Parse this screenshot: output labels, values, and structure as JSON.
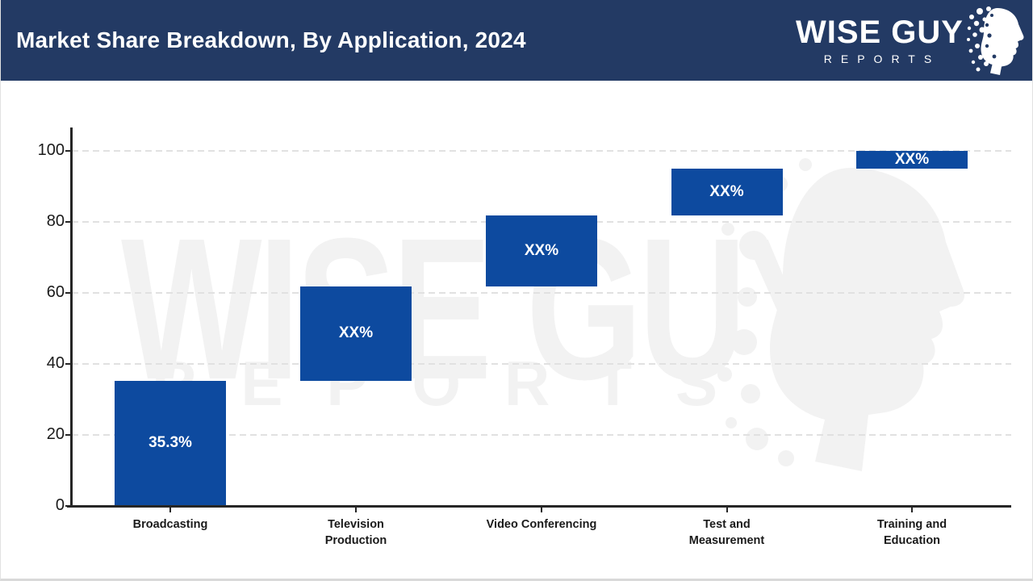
{
  "header": {
    "title": "Market Share Breakdown, By Application, 2024",
    "logo": {
      "line1": "WISE GUY",
      "line2": "REPORTS"
    }
  },
  "watermark": {
    "line1": "WISE GUY",
    "line2": "REPORTS"
  },
  "chart_data": {
    "type": "bar",
    "subtype": "waterfall",
    "title": "Market Share Breakdown, By Application, 2024",
    "categories": [
      "Broadcasting",
      "Television Production",
      "Video Conferencing",
      "Test and Measurement",
      "Training and Education"
    ],
    "category_label_lines": [
      [
        "Broadcasting"
      ],
      [
        "Television",
        "Production"
      ],
      [
        "Video Conferencing"
      ],
      [
        "Test and",
        "Measurement"
      ],
      [
        "Training and",
        "Education"
      ]
    ],
    "segments": [
      {
        "category": "Broadcasting",
        "label": "35.3%",
        "start": 0,
        "end": 35.3,
        "value": 35.3
      },
      {
        "category": "Television Production",
        "label": "XX%",
        "start": 35.3,
        "end": 61.8,
        "value": 26.5
      },
      {
        "category": "Video Conferencing",
        "label": "XX%",
        "start": 61.8,
        "end": 81.8,
        "value": 20.0
      },
      {
        "category": "Test and Measurement",
        "label": "XX%",
        "start": 81.8,
        "end": 94.9,
        "value": 13.1
      },
      {
        "category": "Training and Education",
        "label": "XX%",
        "start": 94.9,
        "end": 100,
        "value": 5.1
      }
    ],
    "y_ticks": [
      0,
      20,
      40,
      60,
      80,
      100
    ],
    "ylim": [
      0,
      106
    ],
    "xlabel": "",
    "ylabel": "",
    "grid": "horizontal-dashed",
    "legend": "none",
    "colors": {
      "bar": "#0d4a9f",
      "bar_label": "#ffffff",
      "axis": "#262626",
      "grid": "#e1e1e1",
      "header_bg": "#233a64",
      "watermark": "#f2f2f2",
      "tick_label": "#1a1a1a"
    }
  }
}
